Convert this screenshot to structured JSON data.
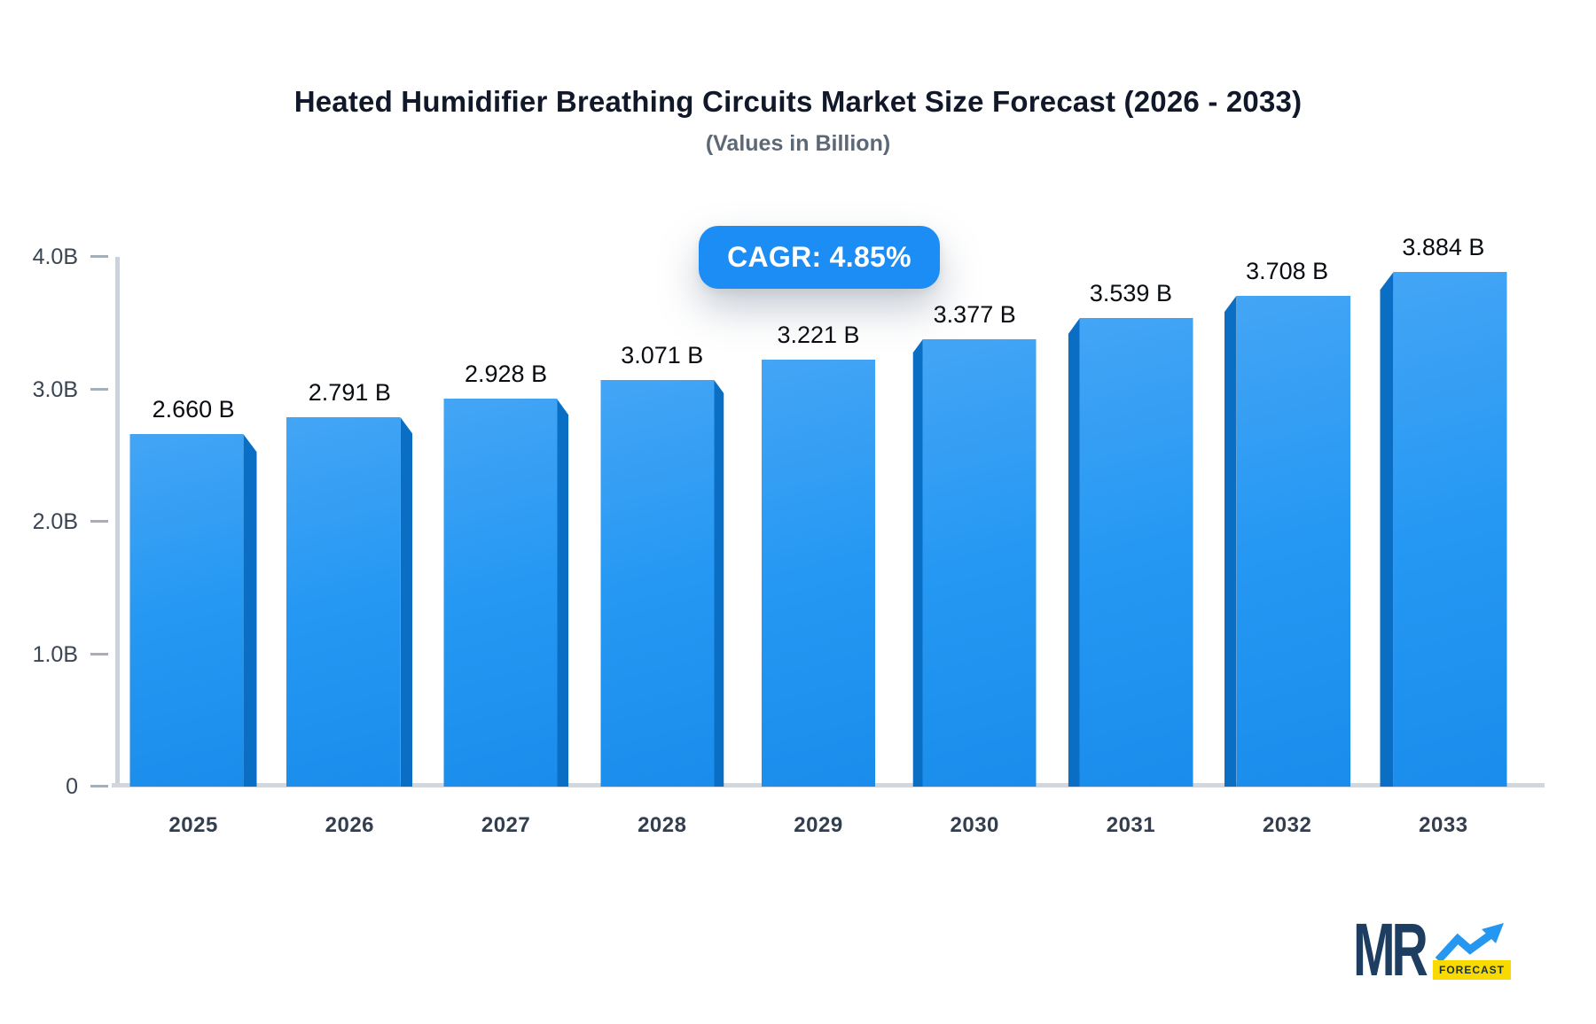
{
  "chart_data": {
    "type": "bar",
    "title": "Heated Humidifier Breathing Circuits Market Size Forecast (2026 - 2033)",
    "subtitle": "(Values in Billion)",
    "cagr_label": "CAGR: 4.85%",
    "categories": [
      "2025",
      "2026",
      "2027",
      "2028",
      "2029",
      "2030",
      "2031",
      "2032",
      "2033"
    ],
    "values": [
      2.66,
      2.791,
      2.928,
      3.071,
      3.221,
      3.377,
      3.539,
      3.708,
      3.884
    ],
    "value_labels": [
      "2.660 B",
      "2.791 B",
      "2.928 B",
      "3.071 B",
      "3.221 B",
      "3.377 B",
      "3.539 B",
      "3.708 B",
      "3.884 B"
    ],
    "xlabel": "",
    "ylabel": "",
    "ylim": [
      0,
      4.0
    ],
    "yticks": [
      {
        "label": "4.0B",
        "value": 4.0
      },
      {
        "label": "3.0B",
        "value": 3.0
      },
      {
        "label": "2.0B",
        "value": 2.0
      },
      {
        "label": "1.0B",
        "value": 1.0
      },
      {
        "label": "0",
        "value": 0
      }
    ],
    "grid": false,
    "legend": false
  },
  "colors": {
    "bar_top": "#44a5f5",
    "bar_main": "#2598f3",
    "bar_bottom": "#1a8ceb",
    "bar_side": "#0a6fc4",
    "badge_bg": "#1d8df6",
    "axis_line": "#ccd2d9",
    "baseline": "#d3d7dc",
    "tick_mark": "#a6aeb8",
    "title_text": "#10182a",
    "subtitle_text": "#5d6876",
    "logo_navy": "#1d3e60",
    "logo_blue": "#2697f0",
    "logo_yellow": "#f8da00"
  },
  "logo": {
    "text": "MR",
    "sub": "FORECAST"
  }
}
